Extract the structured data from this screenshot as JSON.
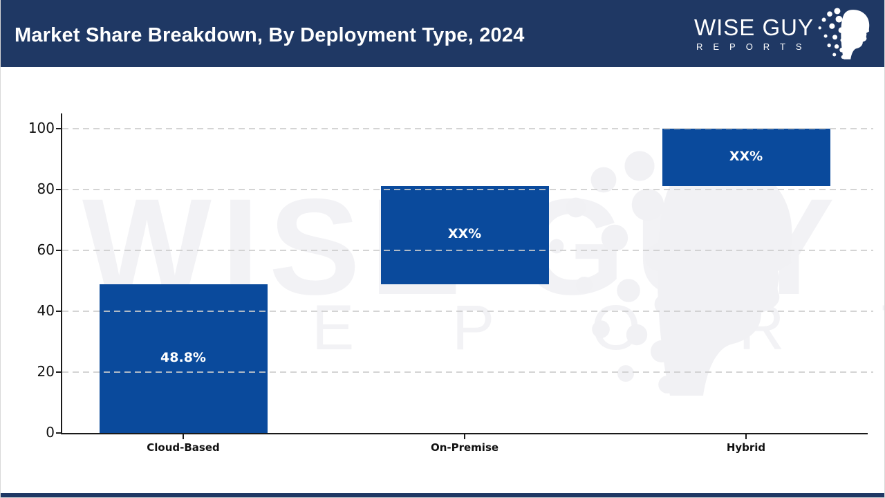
{
  "header": {
    "title": "Market Share Breakdown, By Deployment Type, 2024",
    "bg_color": "#1f3864",
    "logo": {
      "line1": "WISE GUY",
      "line2": "REPORTS"
    }
  },
  "watermark": {
    "line1": "WISE GUY",
    "line2": "R E P O R T S"
  },
  "footer": {
    "bg_color": "#1f3864"
  },
  "chart_data": {
    "type": "bar",
    "subtype": "waterfall",
    "title": "Market Share Breakdown, By Deployment Type, 2024",
    "categories": [
      "Cloud-Based",
      "On-Premise",
      "Hybrid"
    ],
    "series": [
      {
        "name": "Market Share (%)",
        "segments": [
          {
            "category": "Cloud-Based",
            "start": 0,
            "end": 48.8,
            "label": "48.8%"
          },
          {
            "category": "On-Premise",
            "start": 48.8,
            "end": 81.1,
            "label": "XX%"
          },
          {
            "category": "Hybrid",
            "start": 81.1,
            "end": 100,
            "label": "XX%"
          }
        ]
      }
    ],
    "xlabel": "",
    "ylabel": "",
    "ylim": [
      0,
      105
    ],
    "yticks": [
      0,
      20,
      40,
      60,
      80,
      100
    ],
    "grid": "horizontal-dashed",
    "legend": "none",
    "bar_color": "#0a4a9c",
    "bar_label_color": "#ffffff",
    "grid_color": "#d3d3d3",
    "axis_color": "#1a1a1a"
  }
}
